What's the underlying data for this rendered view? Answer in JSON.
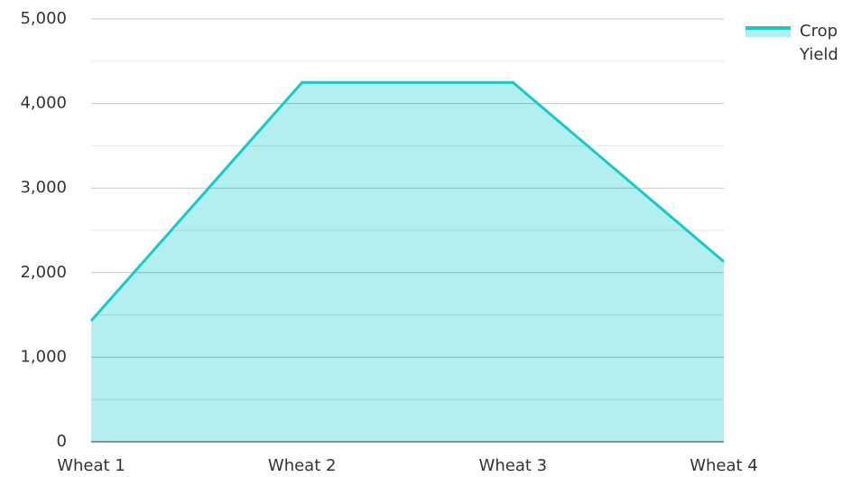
{
  "chart_data": {
    "type": "area",
    "categories": [
      "Wheat 1",
      "Wheat 2",
      "Wheat 3",
      "Wheat 4"
    ],
    "series": [
      {
        "name": "Crop Yield",
        "color": "#19c9c9",
        "fill": "#b2efee",
        "values": [
          1430,
          4250,
          4250,
          2130
        ]
      }
    ],
    "ylim": [
      0,
      5000
    ],
    "yticks": [
      0,
      {
        "value": 1000,
        "label": "1,000"
      },
      {
        "value": 2000,
        "label": "2,000"
      },
      {
        "value": 3000,
        "label": "3,000"
      },
      {
        "value": 4000,
        "label": "4,000"
      },
      {
        "value": 5000,
        "label": "5,000"
      }
    ],
    "minor_yticks": [
      500,
      1500,
      2500,
      3500,
      4500
    ],
    "grid": true,
    "legend": "top-right"
  }
}
